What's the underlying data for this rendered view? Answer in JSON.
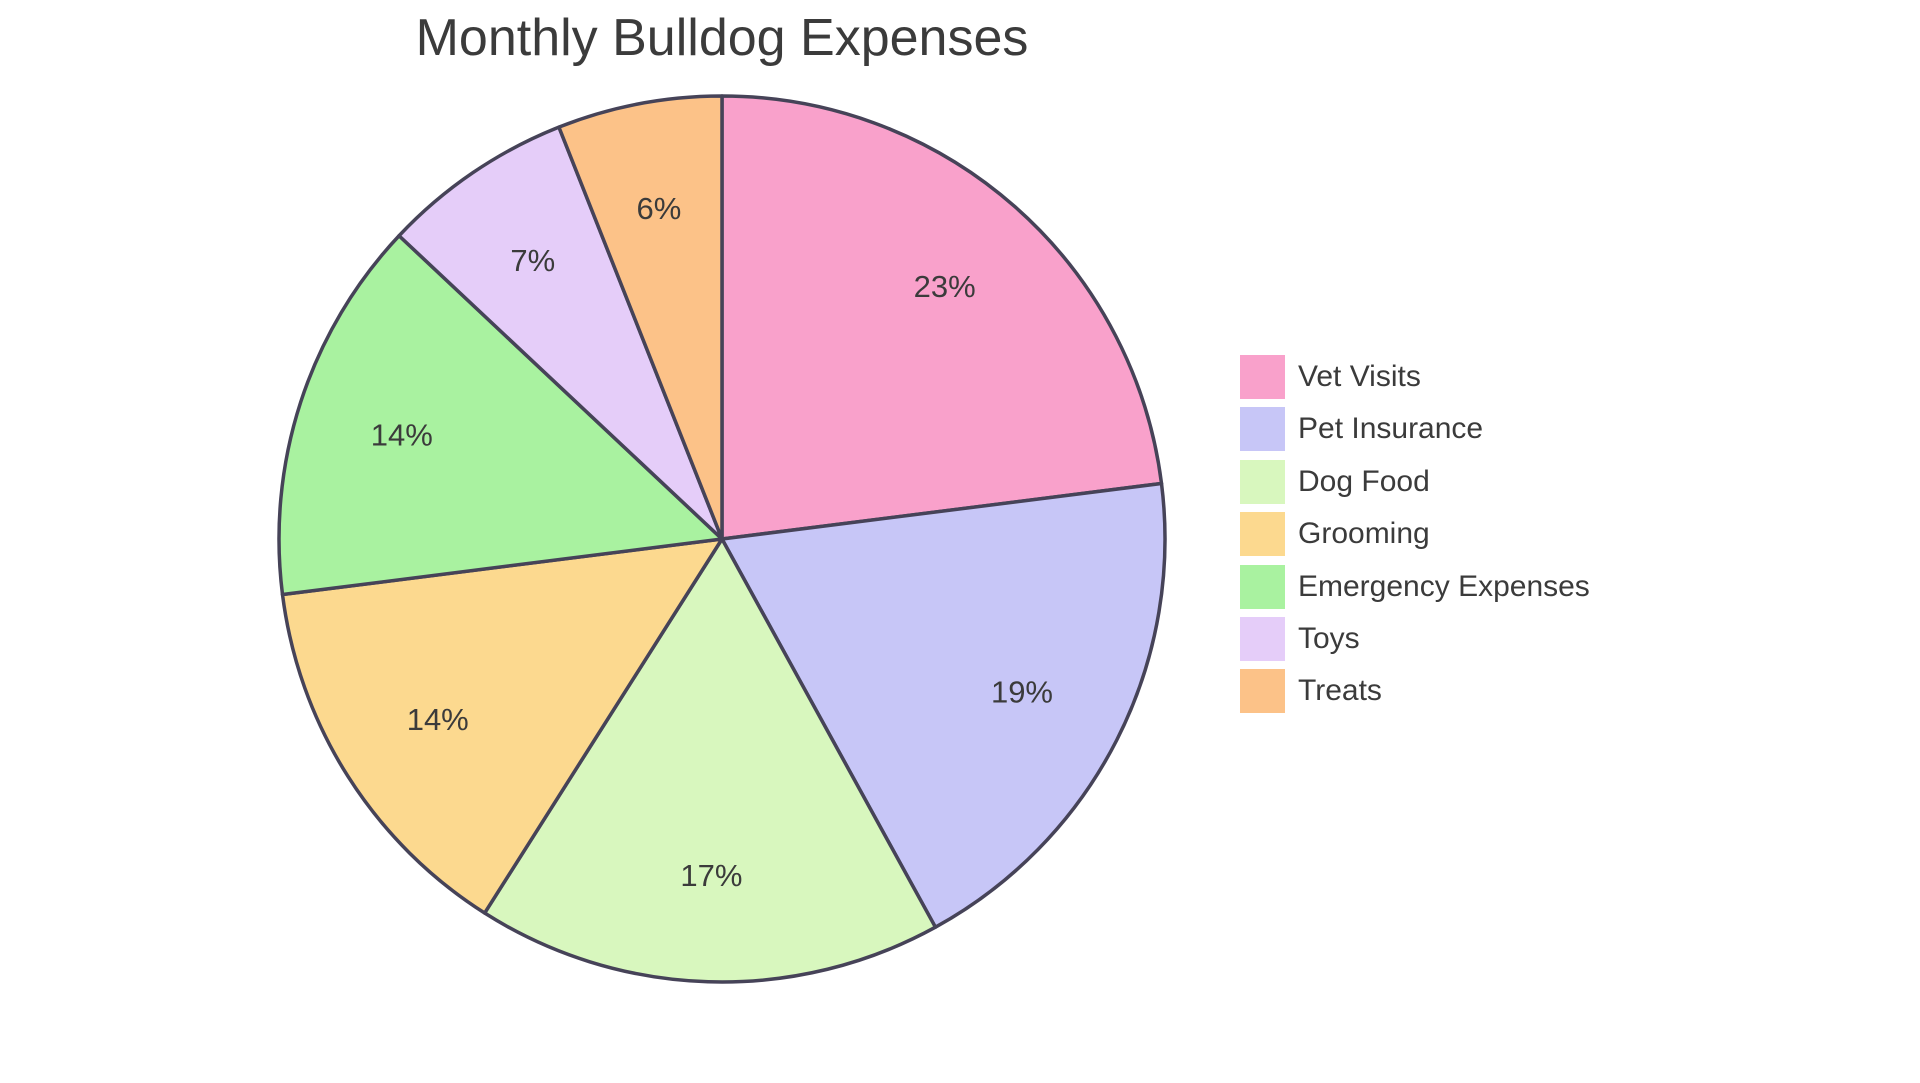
{
  "title": "Monthly Bulldog Expenses",
  "colors": {
    "background": "#ffffff",
    "text": "#3b3b3b",
    "wedge_outline": "#464358"
  },
  "chart_data": {
    "type": "pie",
    "title": "Monthly Bulldog Expenses",
    "labels": [
      "Vet Visits",
      "Pet Insurance",
      "Dog Food",
      "Grooming",
      "Emergency Expenses",
      "Toys",
      "Treats"
    ],
    "values": [
      23,
      19,
      17,
      14,
      14,
      7,
      6
    ],
    "percent_labels": [
      "23%",
      "19%",
      "17%",
      "14%",
      "14%",
      "7%",
      "6%"
    ],
    "slice_colors": [
      "#F9A1CB",
      "#C7C6F7",
      "#D8F7BE",
      "#FCD98F",
      "#A9F2A0",
      "#E5CDF9",
      "#FCC288"
    ],
    "start_angle": "12-o-clock",
    "direction": "clockwise",
    "legend_position": "right",
    "labels_inside": true,
    "label_distance_fraction": 0.76
  }
}
